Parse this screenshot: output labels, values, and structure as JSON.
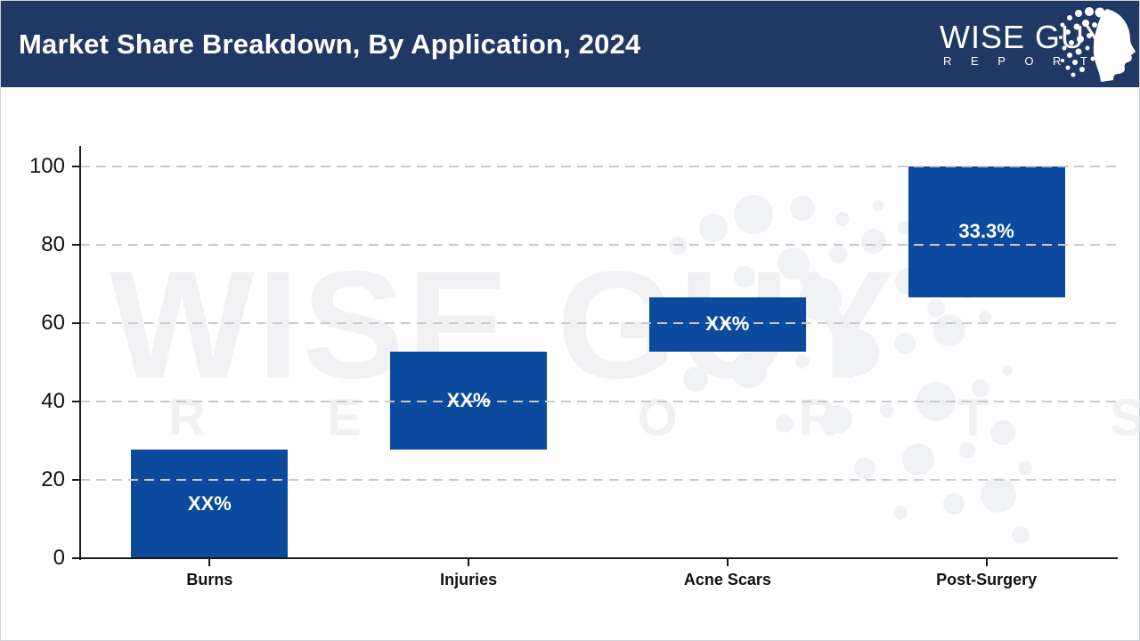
{
  "header": {
    "title": "Market Share Breakdown, By Application, 2024",
    "logo": {
      "line1": "WISE GUY",
      "line2": "R E P O R T S"
    }
  },
  "watermark": {
    "line1": "WISE GUY",
    "line2": "R E P O R T S"
  },
  "colors": {
    "header_bg": "#203864",
    "bar": "#0b4a9d",
    "grid": "#c9c9c9",
    "axis": "#1a1a1a",
    "watermark": "#f1f1f4",
    "bar_label": "#ffffff"
  },
  "chart_data": {
    "type": "bar",
    "subtype": "waterfall",
    "title": "Market Share Breakdown, By Application, 2024",
    "categories": [
      "Burns",
      "Injuries",
      "Acne Scars",
      "Post-Surgery"
    ],
    "segments": [
      {
        "category": "Burns",
        "start": 0,
        "end": 27.8,
        "label": "XX%"
      },
      {
        "category": "Injuries",
        "start": 27.8,
        "end": 52.8,
        "label": "XX%"
      },
      {
        "category": "Acne Scars",
        "start": 52.8,
        "end": 66.7,
        "label": "XX%"
      },
      {
        "category": "Post-Surgery",
        "start": 66.7,
        "end": 100,
        "label": "33.3%"
      }
    ],
    "y_ticks": [
      "0",
      "20",
      "40",
      "60",
      "80",
      "100"
    ],
    "ylim": [
      0,
      100
    ],
    "grid": "dashed-horizontal",
    "legend": "none"
  }
}
